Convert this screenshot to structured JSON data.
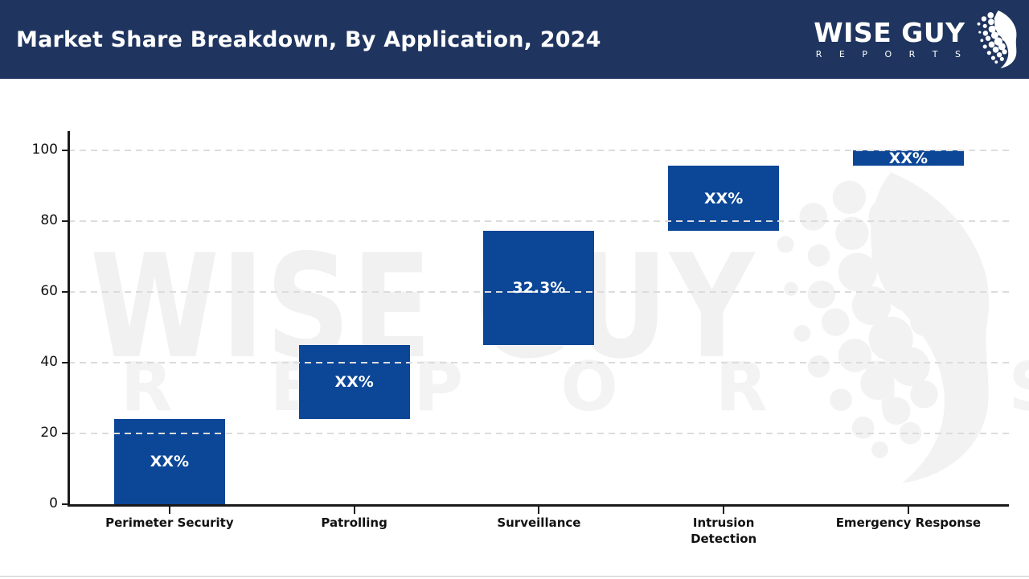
{
  "header": {
    "title": "Market Share Breakdown, By Application, 2024",
    "logo": {
      "name": "WISE GUY",
      "sub": "R E P O R T S"
    }
  },
  "watermark": {
    "name": "WISE GUY",
    "sub": "R E P O R T S"
  },
  "chart_data": {
    "type": "bar",
    "variant": "floating-waterfall",
    "title": "Market Share Breakdown, By Application, 2024",
    "xlabel": "",
    "ylabel": "",
    "categories": [
      "Perimeter Security",
      "Patrolling",
      "Surveillance",
      "Intrusion\nDetection",
      "Emergency Response"
    ],
    "segments": [
      {
        "category": "Perimeter Security",
        "start": 0,
        "end": 24,
        "label": "XX%"
      },
      {
        "category": "Patrolling",
        "start": 24,
        "end": 45,
        "label": "XX%"
      },
      {
        "category": "Surveillance",
        "start": 45,
        "end": 77.3,
        "label": "32.3%"
      },
      {
        "category": "Intrusion Detection",
        "start": 77.3,
        "end": 95.7,
        "label": "XX%"
      },
      {
        "category": "Emergency Response",
        "start": 95.7,
        "end": 100,
        "label": "XX%"
      }
    ],
    "yticks": [
      0,
      20,
      40,
      60,
      80,
      100
    ],
    "ylim": [
      0,
      105.5
    ],
    "grid": "dashed-horizontal",
    "legend": "none",
    "colors": {
      "bar": "#0b4697",
      "bar_label": "#ffffff",
      "grid": "#dcdcdc",
      "axis": "#1a1a1a",
      "header_bg": "#1f355f",
      "watermark": "#f2f2f3"
    }
  }
}
